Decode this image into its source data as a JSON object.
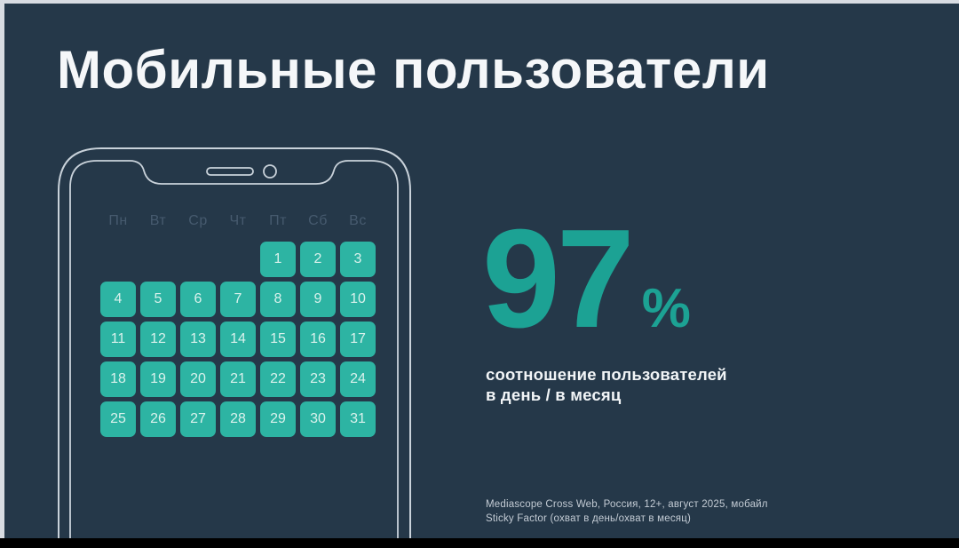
{
  "slide": {
    "title": "Мобильные пользователи",
    "stat": {
      "value": "97",
      "unit": "%",
      "desc_line1": "соотношение пользователей",
      "desc_line2": "в день / в месяц"
    },
    "footnote_line1": "Mediascope Cross Web, Россия, 12+, август 2025, мобайл",
    "footnote_line2": "Sticky Factor (охват в день/охват в месяц)",
    "calendar": {
      "weekdays": [
        "Пн",
        "Вт",
        "Ср",
        "Чт",
        "Пт",
        "Сб",
        "Вс"
      ],
      "cells": [
        "",
        "",
        "",
        "",
        "1",
        "2",
        "3",
        "4",
        "5",
        "6",
        "7",
        "8",
        "9",
        "10",
        "11",
        "12",
        "13",
        "14",
        "15",
        "16",
        "17",
        "18",
        "19",
        "20",
        "21",
        "22",
        "23",
        "24",
        "25",
        "26",
        "27",
        "28",
        "29",
        "30",
        "31"
      ]
    },
    "colors": {
      "slide_background": "#253849",
      "calendar_cell_teal": "#2db4a3",
      "calendar_cell_text": "#d9f1ec",
      "stat_teal": "#1ca294",
      "weekday_muted": "#465a6e",
      "phone_outline": "#c9d2da",
      "frame_gray": "#d8dce2",
      "bottom_bar_black": "#000000",
      "title_white": "#f5f7f9"
    }
  }
}
